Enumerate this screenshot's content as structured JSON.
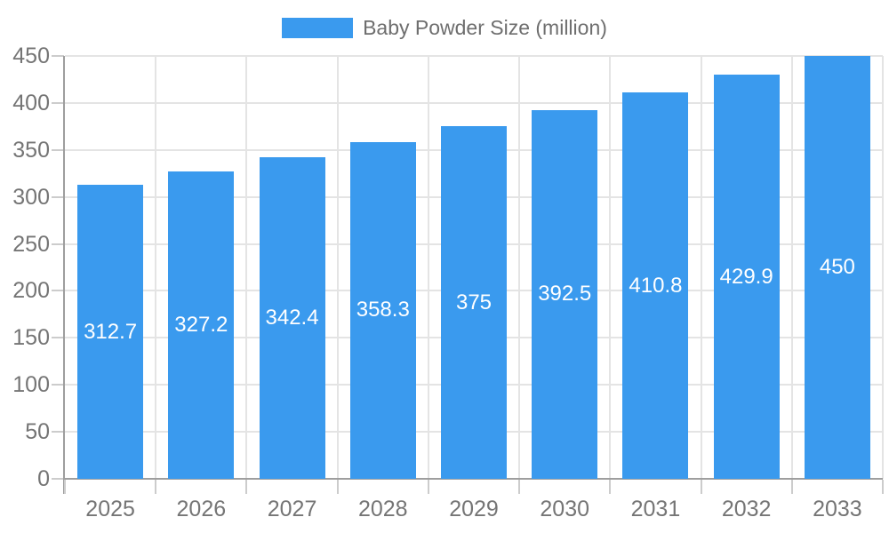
{
  "legend": {
    "label": "Baby Powder Size (million)"
  },
  "chart_data": {
    "type": "bar",
    "title": "Baby Powder Size (million)",
    "categories": [
      "2025",
      "2026",
      "2027",
      "2028",
      "2029",
      "2030",
      "2031",
      "2032",
      "2033"
    ],
    "series": [
      {
        "name": "Baby Powder Size (million)",
        "values": [
          312.7,
          327.2,
          342.4,
          358.3,
          375,
          392.5,
          410.8,
          429.9,
          450
        ]
      }
    ],
    "data_labels": [
      "312.7",
      "327.2",
      "342.4",
      "358.3",
      "375",
      "392.5",
      "410.8",
      "429.9",
      "450"
    ],
    "xlabel": "",
    "ylabel": "",
    "ylim": [
      0,
      450
    ],
    "yticks": [
      0,
      50,
      100,
      150,
      200,
      250,
      300,
      350,
      400,
      450
    ],
    "grid": true,
    "legend_position": "top",
    "colors": {
      "bar": "#3A9AEE",
      "bar_label": "#ffffff",
      "axis_text": "#757575",
      "legend_text": "#6e6e6e",
      "axis_line": "#9e9e9e",
      "gridline": "#e4e4e4",
      "tick": "#cccccc",
      "background": "#ffffff"
    }
  }
}
